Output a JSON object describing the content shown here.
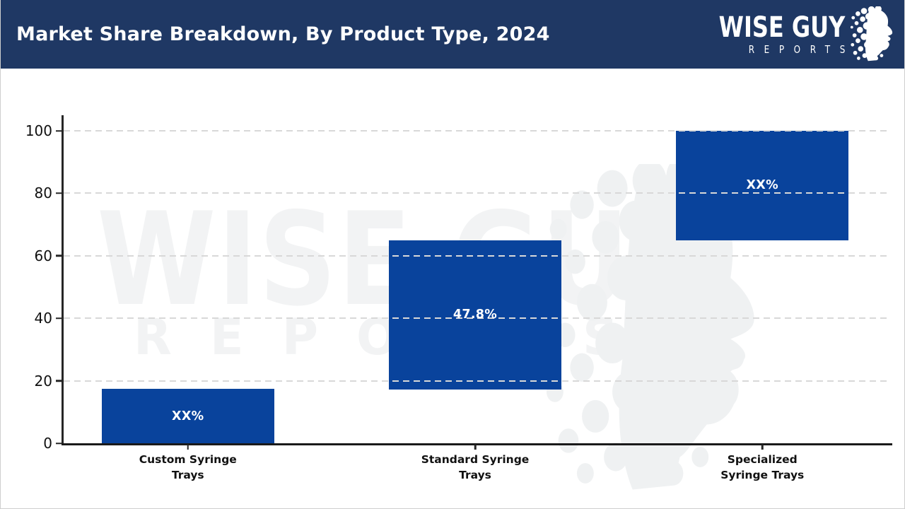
{
  "header": {
    "title": "Market Share Breakdown, By Product Type, 2024",
    "logo": {
      "brand_line1": "WISE GUY",
      "brand_line2": "REPORTS"
    }
  },
  "watermark": {
    "line1": "WISE GUY",
    "line2": "REPORTS"
  },
  "colors": {
    "header_bg": "#1f3864",
    "bar_fill": "#09439c",
    "bar_label_text": "#ffffff",
    "grid_line": "#d8d8d8",
    "axis_line": "#1a1a1a",
    "tick_text": "#111111",
    "watermark_gray": "#f2f3f4"
  },
  "chart_data": {
    "type": "bar",
    "subtype": "floating-segment (waterfall-style) market share bars",
    "title": "Market Share Breakdown, By Product Type, 2024",
    "categories": [
      "Custom Syringe Trays",
      "Standard Syringe Trays",
      "Specialized Syringe Trays"
    ],
    "category_label_lines": [
      [
        "Custom Syringe",
        "Trays"
      ],
      [
        "Standard Syringe",
        "Trays"
      ],
      [
        "Specialized",
        "Syringe Trays"
      ]
    ],
    "bars": [
      {
        "category": "Custom Syringe Trays",
        "start": 0,
        "end": 17.4,
        "value_label": "XX%"
      },
      {
        "category": "Standard Syringe Trays",
        "start": 17.2,
        "end": 65,
        "value_label": "47.8%"
      },
      {
        "category": "Specialized Syringe Trays",
        "start": 65,
        "end": 100,
        "value_label": "XX%"
      }
    ],
    "xlabel": "",
    "ylabel": "",
    "yticks": [
      0,
      20,
      40,
      60,
      80,
      100
    ],
    "ylim": [
      0,
      105
    ],
    "grid": "horizontal dashed lines drawn above bars",
    "legend": "none"
  }
}
